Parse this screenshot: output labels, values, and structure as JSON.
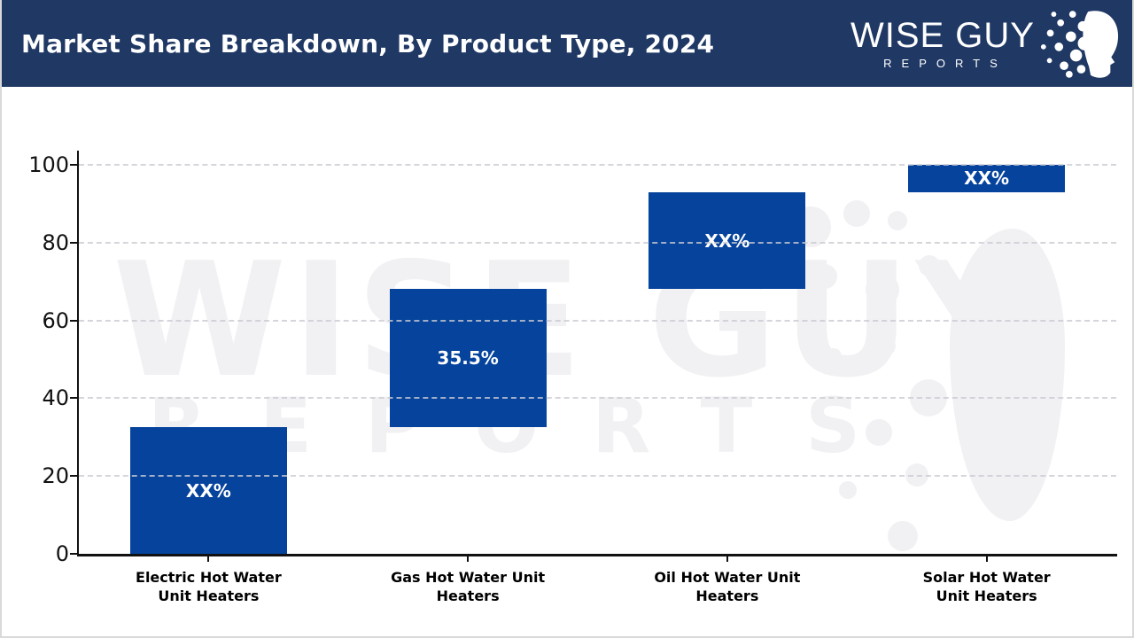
{
  "page": {
    "background": "#ffffff",
    "border_color": "#d9d9d9"
  },
  "header": {
    "bg_color": "#1f3864",
    "title": "Market Share Breakdown, By Product Type, 2024",
    "text_color": "#ffffff",
    "logo": {
      "wordmark": "WISE GUY",
      "subtext": "REPORTS",
      "icon": "dotted-face-profile-icon"
    }
  },
  "watermark": {
    "wordmark": "WISE GUY",
    "subtext": "REPORTS",
    "color": "#f1f1f4"
  },
  "chart_data": {
    "type": "bar",
    "subtype": "floating-waterfall-segments",
    "title": "Market Share Breakdown, By Product Type, 2024",
    "xlabel": "",
    "ylabel": "",
    "ylim": [
      0,
      100
    ],
    "yticks": [
      0,
      20,
      40,
      60,
      80,
      100
    ],
    "grid": {
      "horizontal": true,
      "style": "dashed",
      "color": "#d9d9d9",
      "drawn_over_bars": true
    },
    "legend": null,
    "bar_color": "#05439c",
    "value_label_color": "#ffffff",
    "categories": [
      "Electric Hot Water Unit Heaters",
      "Gas Hot Water Unit Heaters",
      "Oil Hot Water Unit Heaters",
      "Solar Hot Water Unit Heaters"
    ],
    "bars": [
      {
        "category": "Electric Hot Water Unit Heaters",
        "label_lines": [
          "Electric Hot Water",
          "Unit Heaters"
        ],
        "start": 0,
        "end": 32.5,
        "height": 32.5,
        "value_label": "XX%"
      },
      {
        "category": "Gas Hot Water Unit Heaters",
        "label_lines": [
          "Gas Hot Water Unit",
          "Heaters"
        ],
        "start": 32.5,
        "end": 68,
        "height": 35.5,
        "value_label": "35.5%"
      },
      {
        "category": "Oil Hot Water Unit Heaters",
        "label_lines": [
          "Oil Hot Water Unit",
          "Heaters"
        ],
        "start": 68,
        "end": 93,
        "height": 25,
        "value_label": "XX%"
      },
      {
        "category": "Solar Hot Water Unit Heaters",
        "label_lines": [
          "Solar Hot Water",
          "Unit Heaters"
        ],
        "start": 93,
        "end": 100,
        "height": 7,
        "value_label": "XX%"
      }
    ]
  }
}
